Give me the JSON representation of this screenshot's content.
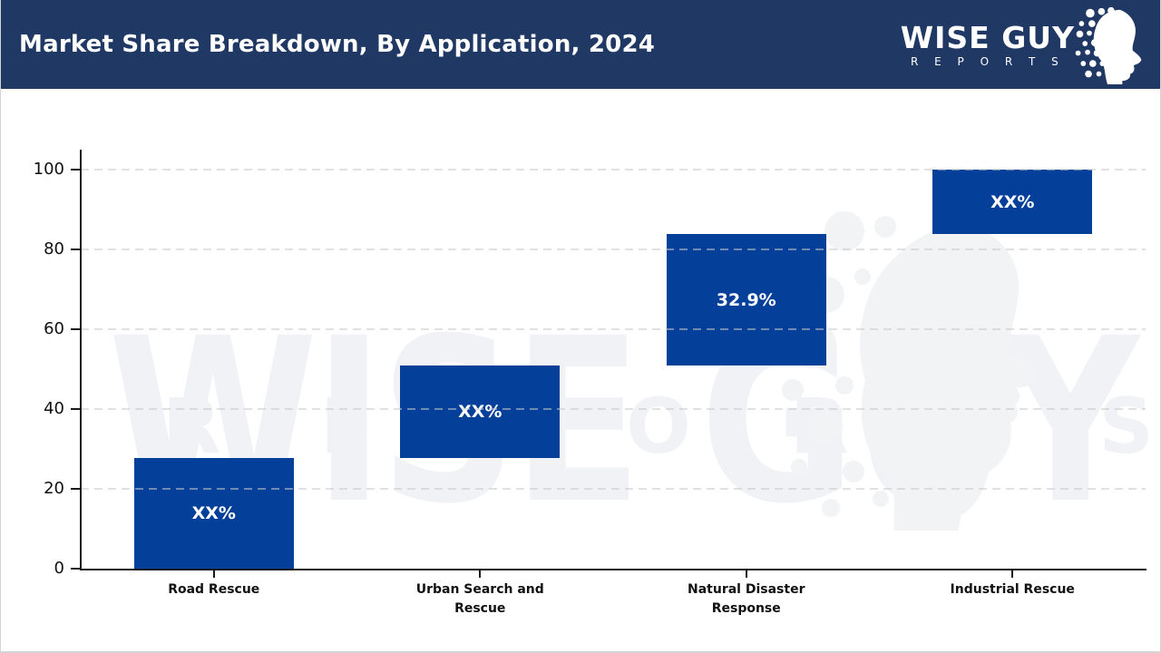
{
  "header": {
    "title": "Market Share Breakdown, By Application, 2024",
    "brand": {
      "line1": "WISE GUY",
      "line2": "R E P O R T S"
    }
  },
  "watermark": {
    "line1": "WISE GUY",
    "line2": "R E P O R T S"
  },
  "colors": {
    "header_bg": "#1f3864",
    "bar_fill": "#04409a",
    "bar_label_text": "#ffffff",
    "axis": "#1a1a1a",
    "gridline": "#d9d9d9",
    "watermark": "#f1f2f5"
  },
  "chart_data": {
    "type": "bar",
    "subtype": "floating-waterfall",
    "title": "Market Share Breakdown, By Application, 2024",
    "categories": [
      "Road Rescue",
      "Urban Search and Rescue",
      "Natural Disaster Response",
      "Industrial Rescue"
    ],
    "series": [
      {
        "name": "Market share (%)",
        "segments": [
          {
            "category": "Road Rescue",
            "start": 0,
            "end": 27.7,
            "label": "XX%"
          },
          {
            "category": "Urban Search and Rescue",
            "start": 27.7,
            "end": 50.9,
            "label": "XX%"
          },
          {
            "category": "Natural Disaster Response",
            "start": 50.9,
            "end": 83.8,
            "label": "32.9%"
          },
          {
            "category": "Industrial Rescue",
            "start": 83.8,
            "end": 100,
            "label": "XX%"
          }
        ]
      }
    ],
    "ylim": [
      0,
      100
    ],
    "yticks": [
      0,
      20,
      40,
      60,
      80,
      100
    ],
    "xlabel": "",
    "ylabel": "",
    "grid": "horizontal-dashed-over-bars",
    "legend": "none"
  }
}
